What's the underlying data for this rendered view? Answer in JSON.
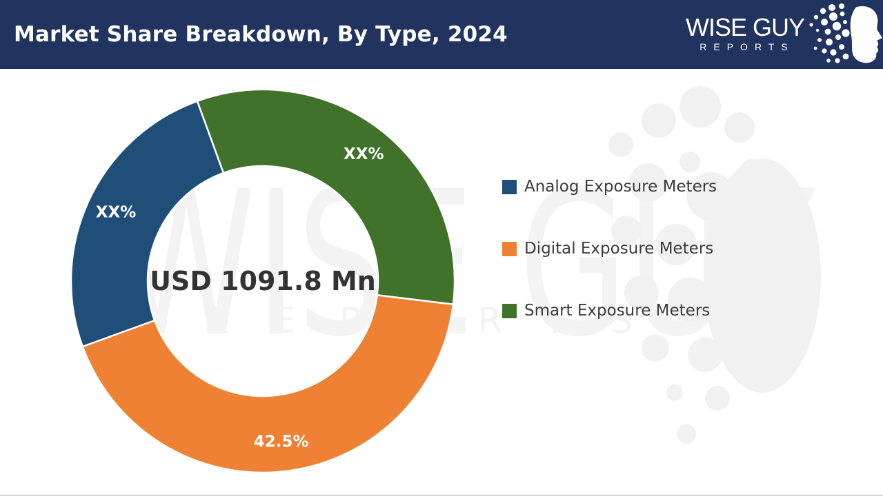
{
  "header": {
    "title": "Market Share Breakdown, By Type, 2024",
    "bg_color": "#21345F",
    "logo": {
      "wordmark": "WISE GUY",
      "subtext": "REPORTS"
    }
  },
  "watermark": {
    "line1": "WISE GUY",
    "line2": "REPORTS"
  },
  "chart_data": {
    "type": "pie",
    "subtype": "donut",
    "title": "Market Share Breakdown, By Type, 2024",
    "center_label": "USD 1091.8 Mn",
    "total_value_label": "USD 1091.8 Mn",
    "start_angle_deg": -20,
    "draw_order": [
      2,
      1,
      0
    ],
    "legend_position": "right",
    "segments": [
      {
        "name": "Analog Exposure Meters",
        "display_label": "XX%",
        "value_pct": 25,
        "color": "#1F4E79"
      },
      {
        "name": "Digital Exposure Meters",
        "display_label": "42.5%",
        "value_pct": 42.5,
        "color": "#EE8133"
      },
      {
        "name": "Smart Exposure Meters",
        "display_label": "XX%",
        "value_pct": 32.5,
        "color": "#41722A"
      }
    ],
    "colors": {
      "header_bg": "#21345F",
      "center_text": "#333333",
      "legend_text": "#3C3C3C",
      "segment_label_text": "#FFFFFF"
    }
  }
}
